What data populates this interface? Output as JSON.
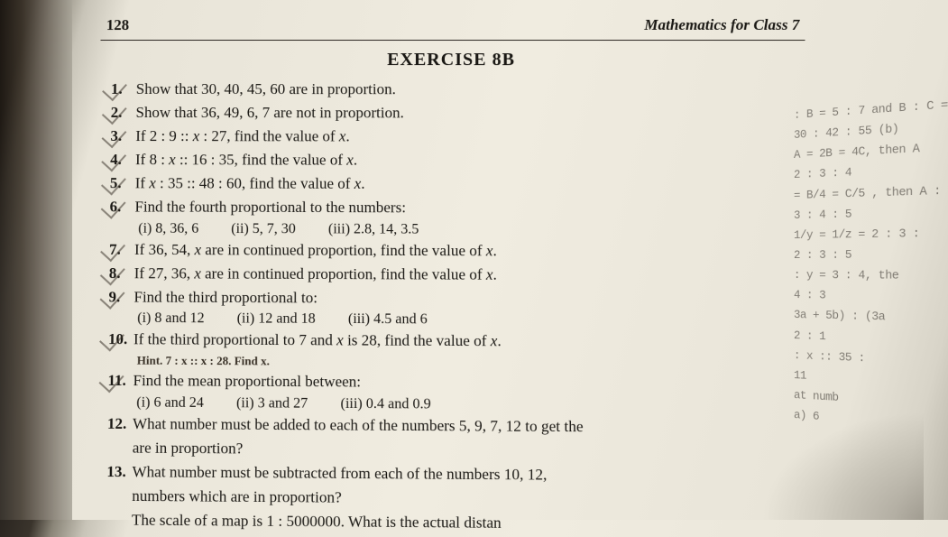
{
  "header": {
    "page_number": "128",
    "book_title": "Mathematics for Class 7",
    "exercise": "EXERCISE 8B"
  },
  "questions": [
    {
      "num": "1.",
      "tick": true,
      "text": "Show that 30, 40, 45, 60 are in proportion."
    },
    {
      "num": "2.",
      "tick": true,
      "text": "Show that 36, 49, 6, 7 are not in proportion."
    },
    {
      "num": "3.",
      "tick": true,
      "text": "If 2 : 9 :: x : 27, find the value of x."
    },
    {
      "num": "4.",
      "tick": true,
      "text": "If 8 : x :: 16 : 35, find the value of x."
    },
    {
      "num": "5.",
      "tick": true,
      "text": "If x : 35 :: 48 : 60, find the value of x."
    },
    {
      "num": "6.",
      "tick": true,
      "text": "Find the fourth proportional to the numbers:",
      "parts": [
        {
          "label": "(i)",
          "val": "8, 36, 6"
        },
        {
          "label": "(ii)",
          "val": "5, 7, 30"
        },
        {
          "label": "(iii)",
          "val": "2.8, 14, 3.5"
        }
      ]
    },
    {
      "num": "7.",
      "tick": true,
      "text": "If 36, 54, x are in continued proportion, find the value of x."
    },
    {
      "num": "8.",
      "tick": true,
      "text": "If 27, 36, x are in continued proportion, find the value of x."
    },
    {
      "num": "9.",
      "tick": true,
      "text": "Find the third proportional to:",
      "parts": [
        {
          "label": "(i)",
          "val": "8 and 12"
        },
        {
          "label": "(ii)",
          "val": "12 and 18"
        },
        {
          "label": "(iii)",
          "val": "4.5 and 6"
        }
      ]
    },
    {
      "num": "10.",
      "tick": true,
      "text": "If the third proportional to 7 and x is 28, find the value of x.",
      "hint": "Hint. 7 : x :: x : 28. Find x."
    },
    {
      "num": "11.",
      "tick": true,
      "text": "Find the mean proportional between:",
      "parts": [
        {
          "label": "(i)",
          "val": "6 and 24"
        },
        {
          "label": "(ii)",
          "val": "3 and 27"
        },
        {
          "label": "(iii)",
          "val": "0.4 and 0.9"
        }
      ]
    },
    {
      "num": "12.",
      "tick": false,
      "text": "What number must be added to each of the numbers 5, 9, 7, 12 to get the",
      "cont": "are in proportion?"
    },
    {
      "num": "13.",
      "tick": false,
      "text": "What number must be subtracted from each of the numbers 10, 12,",
      "cont": "numbers which are in proportion?"
    },
    {
      "num": "",
      "tick": false,
      "text": "The scale of a map is 1 : 5000000. What is the actual distan"
    }
  ],
  "margin_notes": [
    ": B = 5 : 7 and B : C =",
    "30 : 42 : 55    (b)",
    "A = 2B = 4C, then A",
    "2 : 3 : 4",
    "= B/4 = C/5 , then A :",
    "3 : 4 : 5",
    "1/y = 1/z = 2 : 3 :",
    "2 : 3 : 5",
    ": y = 3 : 4, the",
    "4 : 3",
    "3a + 5b) : (3a",
    "2 : 1",
    ": x :: 35 :",
    "11",
    "at numb",
    "a) 6"
  ]
}
